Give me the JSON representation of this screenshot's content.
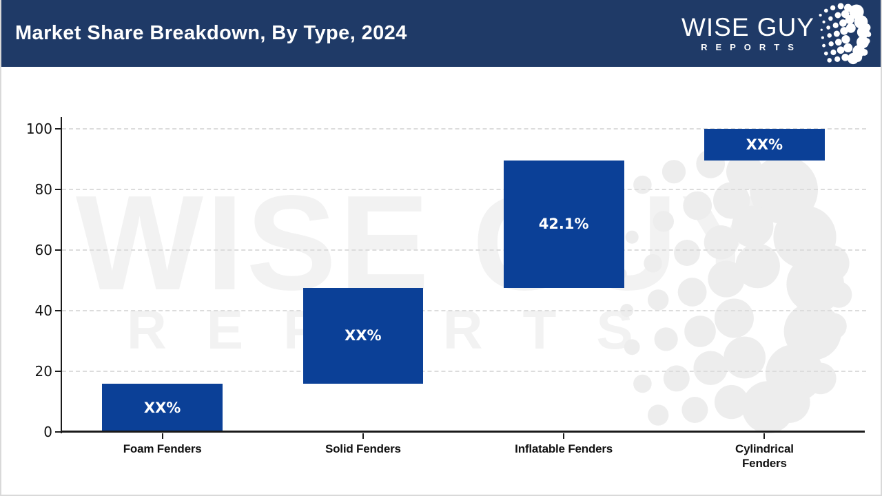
{
  "header": {
    "title": "Market Share Breakdown, By Type, 2024",
    "background_color": "#1f3a67",
    "logo": {
      "line1": "WISE GUY",
      "line2": "REPORTS",
      "head_icon": "dotted-face-profile"
    }
  },
  "watermark": {
    "line1": "WISE GUY",
    "line2": "REPORTS",
    "head_icon": "dotted-face-profile"
  },
  "chart_data": {
    "type": "bar",
    "subtype": "waterfall",
    "title": "Market Share Breakdown, By Type, 2024",
    "categories": [
      "Foam Fenders",
      "Solid Fenders",
      "Inflatable Fenders",
      "Cylindrical\nFenders"
    ],
    "segments": [
      {
        "start": 0,
        "end": 16,
        "value": 16,
        "label": "XX%"
      },
      {
        "start": 16,
        "end": 47.5,
        "value": 31.5,
        "label": "XX%"
      },
      {
        "start": 47.5,
        "end": 89.6,
        "value": 42.1,
        "label": "42.1%"
      },
      {
        "start": 89.6,
        "end": 100,
        "value": 10.4,
        "label": "XX%"
      }
    ],
    "xlabel": "",
    "ylabel": "",
    "yticks": [
      0,
      20,
      40,
      60,
      80,
      100
    ],
    "ylim": [
      0,
      104
    ],
    "grid": "horizontal-dashed",
    "legend": null,
    "bar_color": "#0b4097",
    "label_color": "#ffffff"
  }
}
